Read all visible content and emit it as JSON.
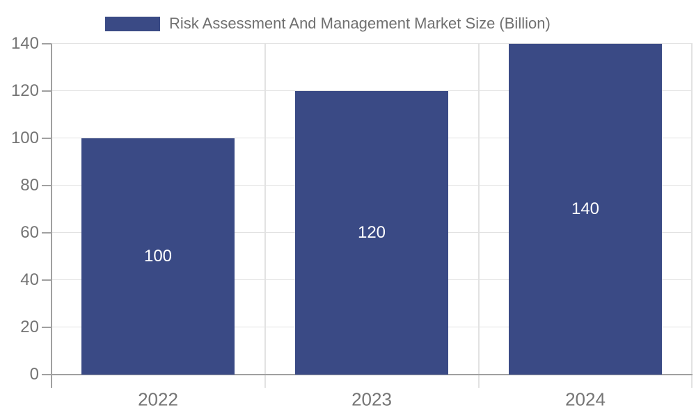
{
  "legend": {
    "label": "Risk Assessment And Management Market Size (Billion)"
  },
  "chart_data": {
    "type": "bar",
    "title": "",
    "xlabel": "",
    "ylabel": "",
    "categories": [
      "2022",
      "2023",
      "2024"
    ],
    "series": [
      {
        "name": "Risk Assessment And Management Market Size (Billion)",
        "values": [
          100,
          120,
          140
        ],
        "data_labels": [
          "100",
          "120",
          "140"
        ]
      }
    ],
    "ylim": [
      0,
      140
    ],
    "yticks": [
      0,
      20,
      40,
      60,
      80,
      100,
      120,
      140
    ],
    "grid": true,
    "legend_position": "top",
    "colors": {
      "bar": "#3A4A85",
      "grid": "#E2E2E2",
      "axis": "#A0A0A0",
      "tick_label": "#757575",
      "legend_text": "#707070",
      "bar_label_text": "#FFFFFF",
      "background": "#FFFFFF"
    }
  }
}
